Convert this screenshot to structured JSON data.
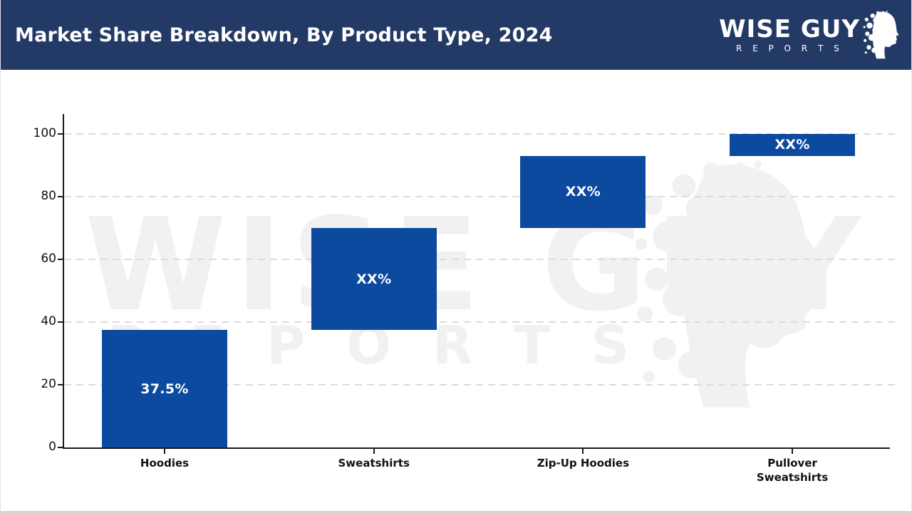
{
  "header": {
    "title": "Market Share Breakdown, By Product Type, 2024",
    "background_color": "#233a66",
    "logo": {
      "line1": "WISE GUY",
      "line2": "R E P O R T S"
    }
  },
  "watermark": {
    "line1": "WISE GUY",
    "line2": "R E P O R T S"
  },
  "chart_data": {
    "type": "bar",
    "subtype": "waterfall",
    "title": "Market Share Breakdown, By Product Type, 2024",
    "categories": [
      "Hoodies",
      "Sweatshirts",
      "Zip-Up Hoodies",
      "Pullover Sweatshirts"
    ],
    "series": [
      {
        "name": "Market Share",
        "segments": [
          {
            "category": "Hoodies",
            "start": 0,
            "end": 37.5,
            "value": 37.5,
            "label": "37.5%"
          },
          {
            "category": "Sweatshirts",
            "start": 37.5,
            "end": 70,
            "value": 32.5,
            "label": "XX%"
          },
          {
            "category": "Zip-Up Hoodies",
            "start": 70,
            "end": 93,
            "value": 23,
            "label": "XX%"
          },
          {
            "category": "Pullover Sweatshirts",
            "start": 93,
            "end": 100,
            "value": 7,
            "label": "XX%"
          }
        ]
      }
    ],
    "ylim": [
      0,
      105
    ],
    "yticks": [
      0,
      20,
      40,
      60,
      80,
      100
    ],
    "grid": "horizontal-dashed",
    "legend": "none",
    "bar_color": "#0b4a9e",
    "label_color": "#ffffff",
    "axis_color": "#1a1a1a"
  }
}
